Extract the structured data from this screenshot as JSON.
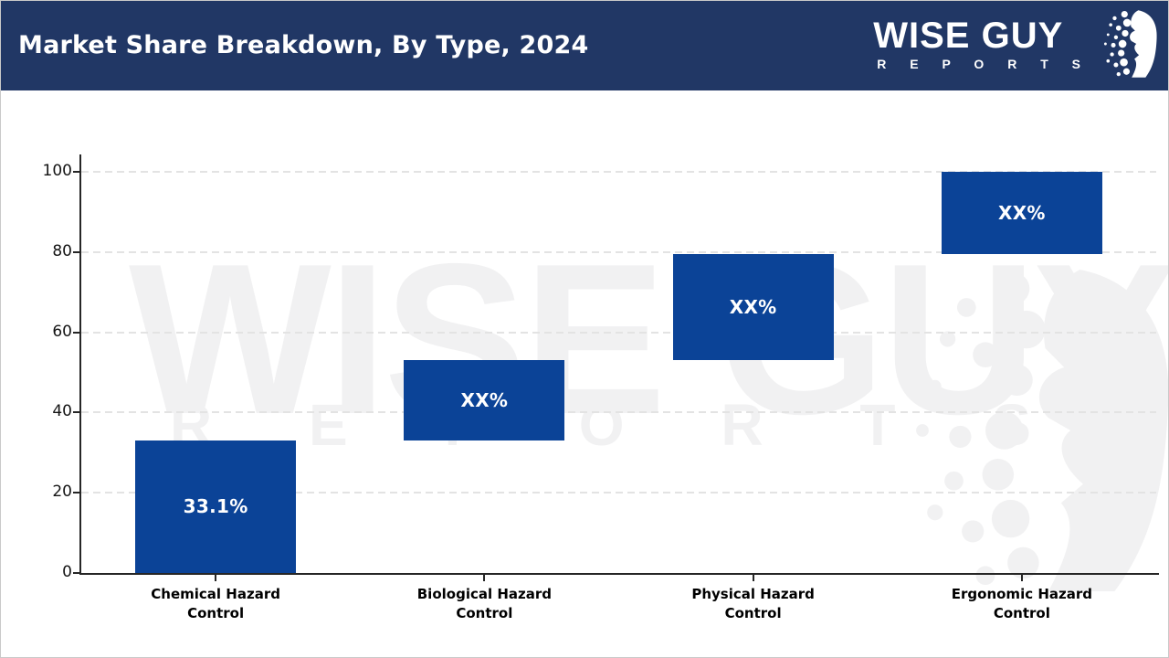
{
  "header": {
    "title": "Market Share Breakdown, By Type, 2024",
    "background_color": "#213765",
    "logo": {
      "brand_top": "WISE GUY",
      "brand_bottom": "R E P O R T S"
    }
  },
  "watermark": {
    "line1": "WISE GUY",
    "line2": "R E P O R T S"
  },
  "chart_data": {
    "type": "bar",
    "subtype": "floating-waterfall",
    "title": "Market Share Breakdown, By Type, 2024",
    "categories": [
      "Chemical Hazard\nControl",
      "Biological Hazard\nControl",
      "Physical Hazard\nControl",
      "Ergonomic Hazard\nControl"
    ],
    "series": [
      {
        "name": "Market Share (%)",
        "segments": [
          {
            "category": "Chemical Hazard Control",
            "start": 0,
            "end": 33.1,
            "label": "33.1%"
          },
          {
            "category": "Biological Hazard Control",
            "start": 33.1,
            "end": 53.1,
            "label": "XX%"
          },
          {
            "category": "Physical Hazard Control",
            "start": 53.1,
            "end": 79.6,
            "label": "XX%"
          },
          {
            "category": "Ergonomic Hazard Control",
            "start": 79.6,
            "end": 100,
            "label": "XX%"
          }
        ]
      }
    ],
    "xlabel": "",
    "ylabel": "",
    "ylim": [
      0,
      104
    ],
    "yticks": [
      0,
      20,
      40,
      60,
      80,
      100
    ],
    "grid": "dashed-horizontal",
    "legend": "none",
    "bar_color": "#0b4397",
    "bar_label_color": "#ffffff",
    "axis_color": "#262626",
    "gridline_color": "#e3e3e3"
  }
}
